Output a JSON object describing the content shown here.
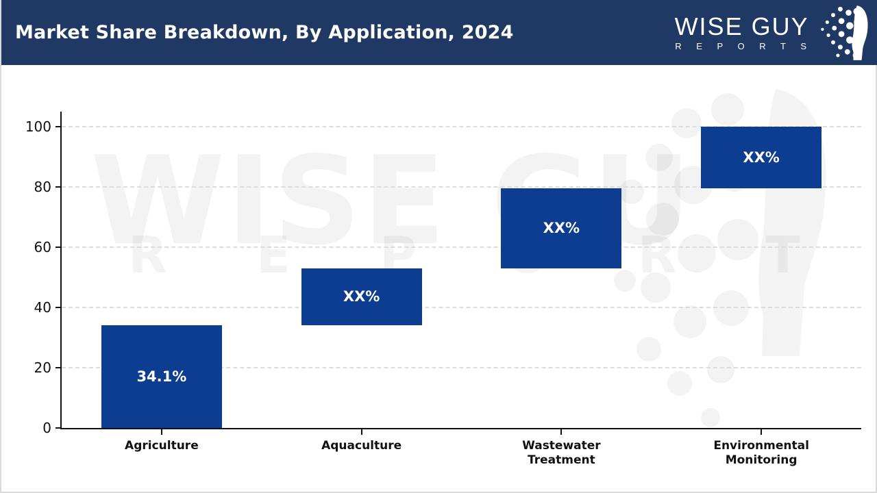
{
  "header": {
    "title": "Market Share Breakdown, By Application, 2024",
    "bg_color": "#1f3864",
    "logo": {
      "line1": "WISE GUY",
      "line2": "R E P O R T S",
      "icon": "dotted-face-logo"
    }
  },
  "watermark": {
    "line1": "WISE GU",
    "line2": "R E P O R T S"
  },
  "chart_data": {
    "type": "waterfall",
    "title": "Market Share Breakdown, By Application, 2024",
    "categories": [
      "Agriculture",
      "Aquaculture",
      "Wastewater\nTreatment",
      "Environmental\nMonitoring"
    ],
    "segments": [
      {
        "category": "Agriculture",
        "start": 0,
        "end": 34.1,
        "label": "34.1%"
      },
      {
        "category": "Aquaculture",
        "start": 34.1,
        "end": 53.0,
        "label": "XX%"
      },
      {
        "category": "Wastewater Treatment",
        "start": 53.0,
        "end": 79.5,
        "label": "XX%"
      },
      {
        "category": "Environmental Monitoring",
        "start": 79.5,
        "end": 100,
        "label": "XX%"
      }
    ],
    "y_ticks": [
      0,
      20,
      40,
      60,
      80,
      100
    ],
    "ylim": [
      0,
      105
    ],
    "xlabel": "",
    "ylabel": "",
    "grid": "horizontal-dashed",
    "legend": null,
    "bar_color": "#0d3d91",
    "bar_label_color": "#ffffff",
    "axis_color": "#111111",
    "gridline_color": "#dcdcdc"
  }
}
